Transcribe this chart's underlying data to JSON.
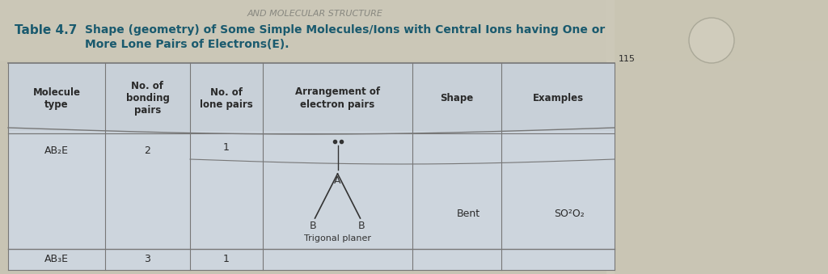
{
  "header_top": "AND MOLECULAR STRUCTURE",
  "page_number": "115",
  "title_bold": "Table 4.7",
  "title_rest_line1": "Shape (geometry) of Some Simple Molecules/Ions with Central Ions having One or",
  "title_rest_line2": "More Lone Pairs of Electrons(E).",
  "col_headers": [
    "Molecule\ntype",
    "No. of\nbonding\npairs",
    "No. of\nlone pairs",
    "Arrangement of\nelectron pairs",
    "Shape",
    "Examples"
  ],
  "row1": [
    "AB₂E",
    "2",
    "1",
    "Trigonal planer",
    "Bent",
    "SO²O₂"
  ],
  "row2_mol": "AB₃E",
  "row2_bond": "3",
  "row2_lone": "1",
  "bg_color": "#c8c4b4",
  "page_color": "#d8d4c4",
  "table_cell_color": "#d0d8e0",
  "header_cell_color": "#c8d0d8",
  "header_color": "#1a5a6e",
  "text_color": "#2a2a2a",
  "border_color": "#777777",
  "mol_diagram_color": "#333333"
}
